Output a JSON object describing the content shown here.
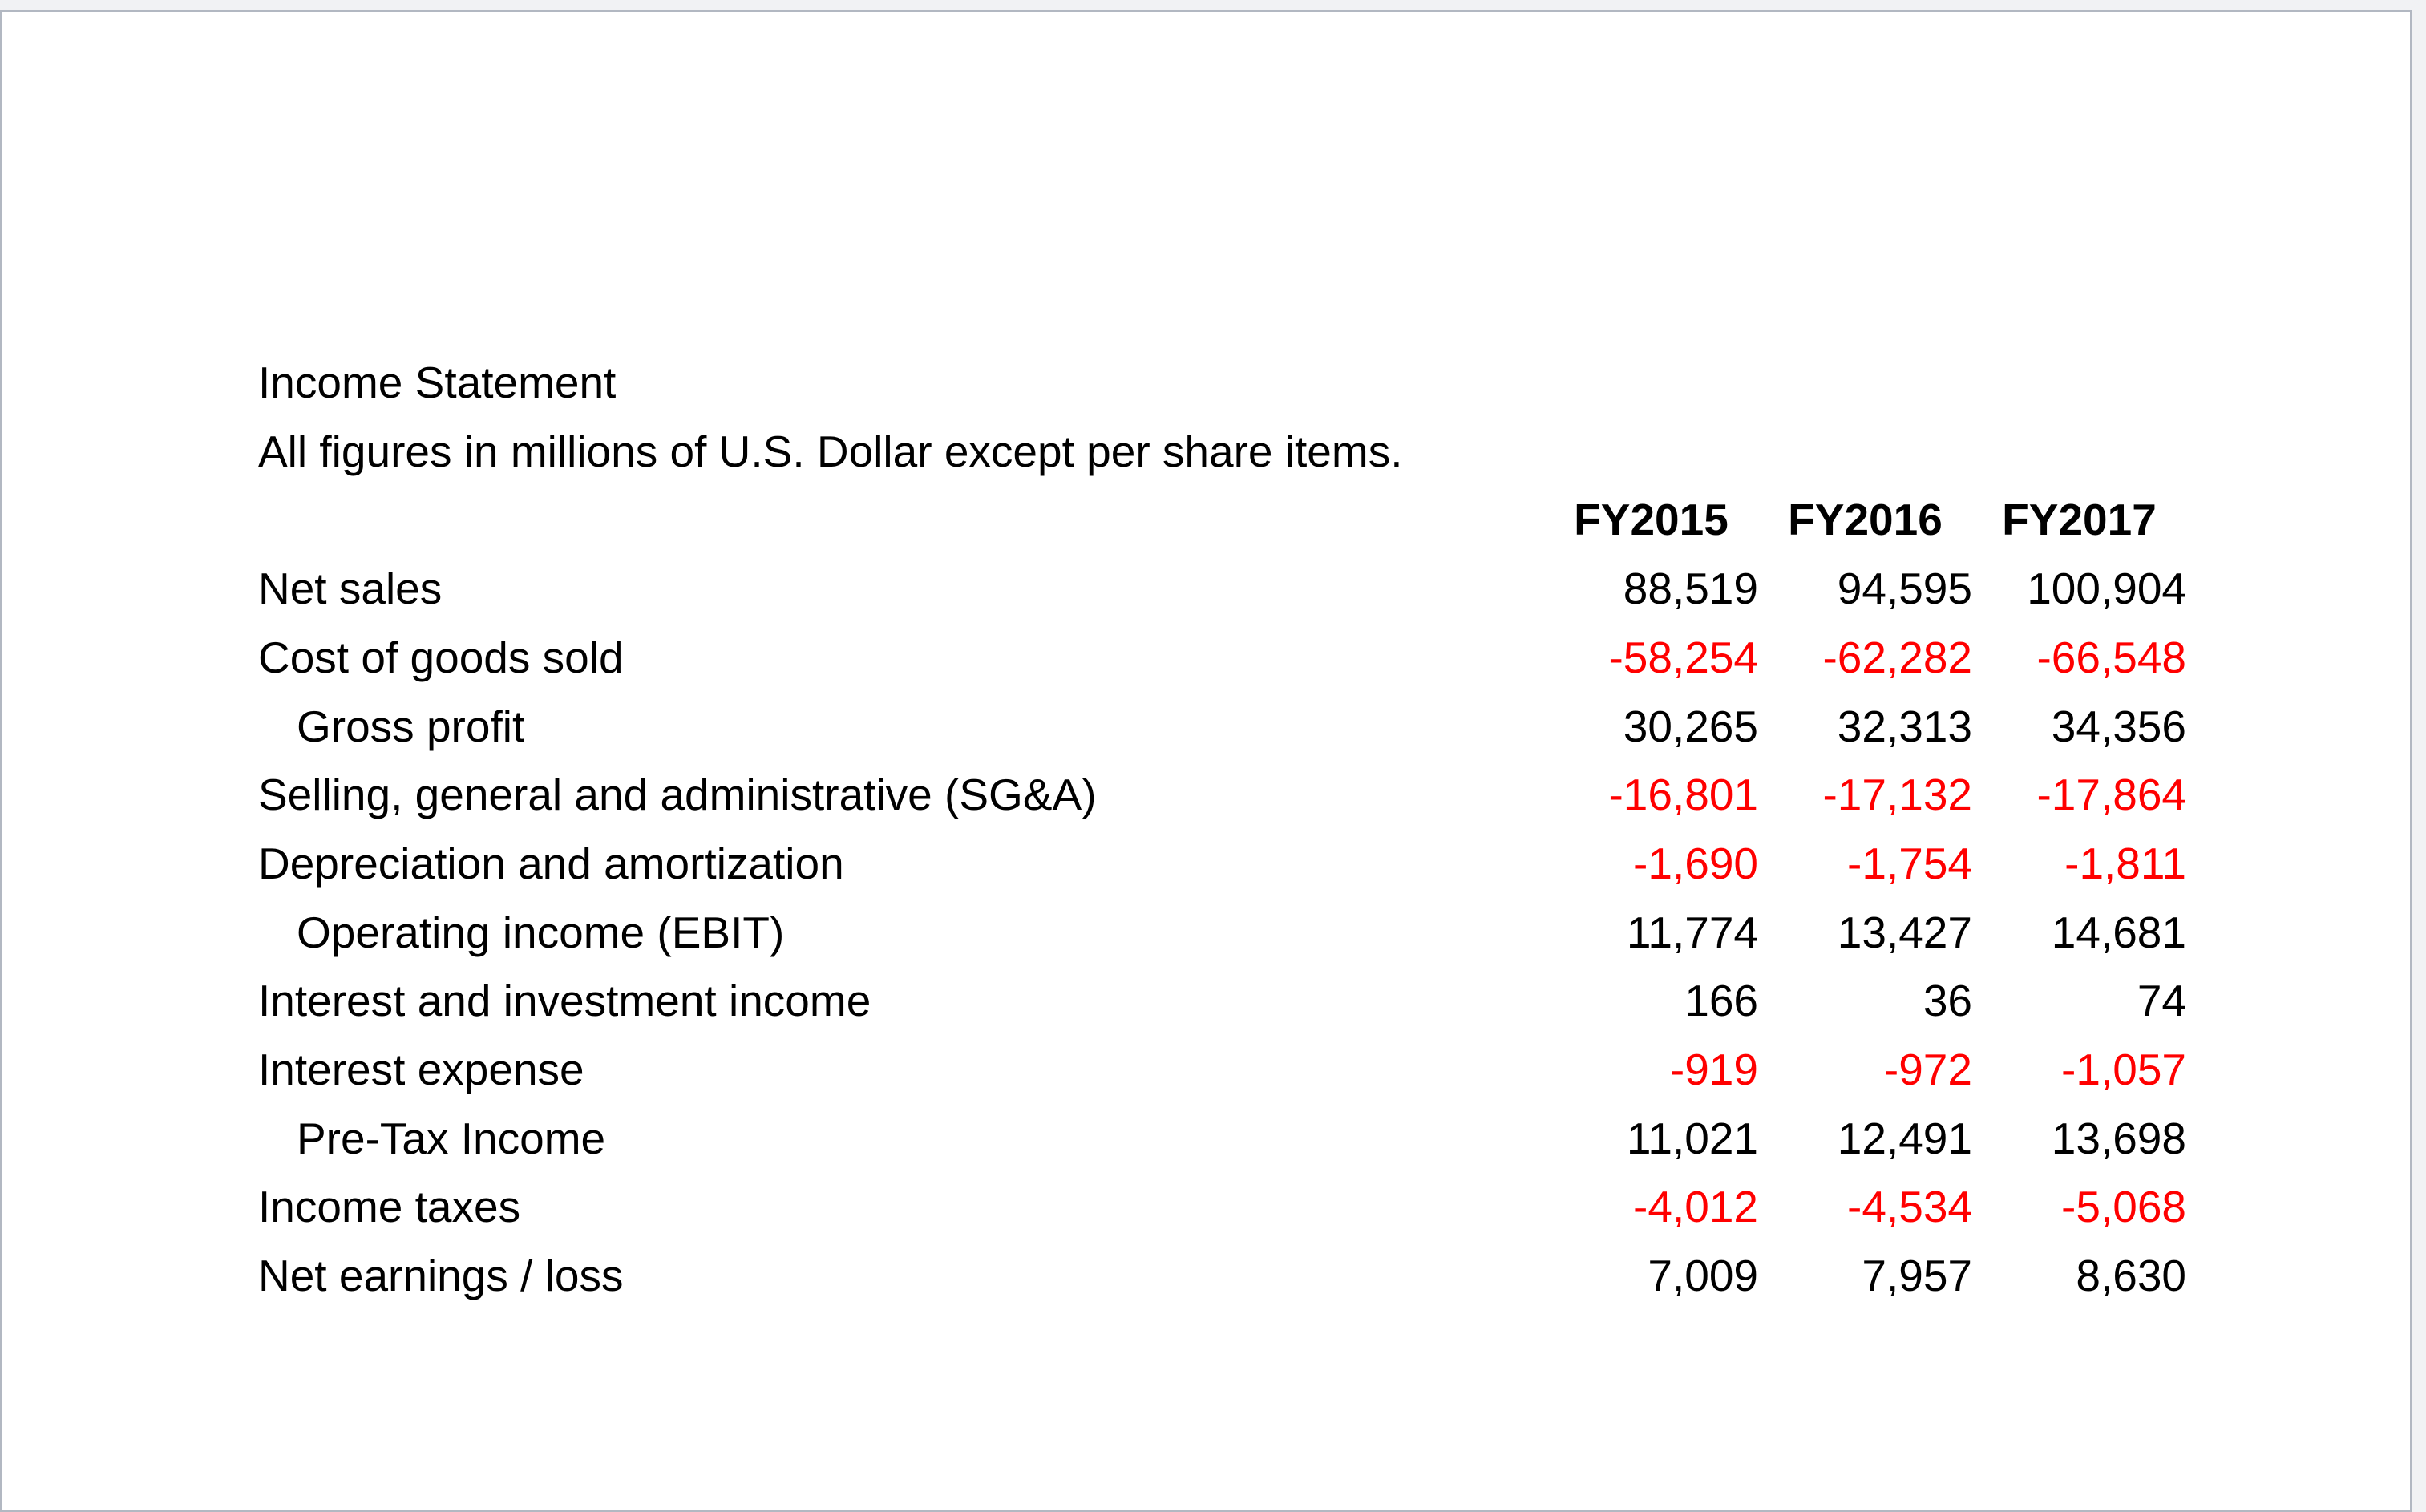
{
  "statement": {
    "title": "Income Statement",
    "subtitle": "All figures in millions of U.S. Dollar except per share items."
  },
  "table": {
    "columns": [
      "FY2015",
      "FY2016",
      "FY2017"
    ],
    "rows": [
      {
        "label": "Net sales",
        "indent": false,
        "values": [
          "88,519",
          "94,595",
          "100,904"
        ]
      },
      {
        "label": "Cost of goods sold",
        "indent": false,
        "values": [
          "-58,254",
          "-62,282",
          "-66,548"
        ]
      },
      {
        "label": "Gross profit",
        "indent": true,
        "values": [
          "30,265",
          "32,313",
          "34,356"
        ]
      },
      {
        "label": "Selling, general and administrative (SG&A)",
        "indent": false,
        "values": [
          "-16,801",
          "-17,132",
          "-17,864"
        ]
      },
      {
        "label": "Depreciation and amortization",
        "indent": false,
        "values": [
          "-1,690",
          "-1,754",
          "-1,811"
        ]
      },
      {
        "label": "Operating income (EBIT)",
        "indent": true,
        "values": [
          "11,774",
          "13,427",
          "14,681"
        ]
      },
      {
        "label": "Interest and investment income",
        "indent": false,
        "values": [
          "166",
          "36",
          "74"
        ]
      },
      {
        "label": "Interest expense",
        "indent": false,
        "values": [
          "-919",
          "-972",
          "-1,057"
        ]
      },
      {
        "label": "Pre-Tax Income",
        "indent": true,
        "values": [
          "11,021",
          "12,491",
          "13,698"
        ]
      },
      {
        "label": "Income taxes",
        "indent": false,
        "values": [
          "-4,012",
          "-4,534",
          "-5,068"
        ]
      },
      {
        "label": "Net earnings / loss",
        "indent": false,
        "values": [
          "7,009",
          "7,957",
          "8,630"
        ]
      }
    ]
  },
  "colors": {
    "negative_value": "#ff0000",
    "text": "#000000",
    "page_border": "#b2b8c2",
    "canvas_background": "#f1f2f4"
  }
}
